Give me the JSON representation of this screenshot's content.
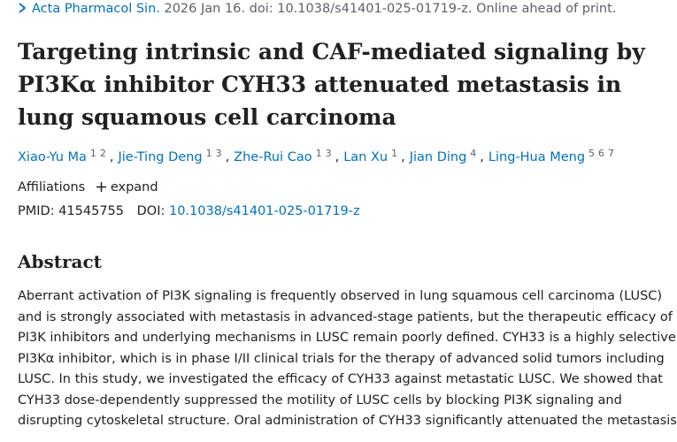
{
  "citation": {
    "journal": "Acta Pharmacol Sin.",
    "details": "2026 Jan 16. doi: 10.1038/s41401-025-01719-z. Online ahead of print."
  },
  "title": "Targeting intrinsic and CAF-mediated signaling by PI3Kα inhibitor CYH33 attenuated metastasis in lung squamous cell carcinoma",
  "author_separator": ",",
  "authors": [
    {
      "name": "Xiao-Yu Ma",
      "affiliations": [
        "1",
        "2"
      ]
    },
    {
      "name": "Jie-Ting Deng",
      "affiliations": [
        "1",
        "3"
      ]
    },
    {
      "name": "Zhe-Rui Cao",
      "affiliations": [
        "1",
        "3"
      ]
    },
    {
      "name": "Lan Xu",
      "affiliations": [
        "1"
      ]
    },
    {
      "name": "Jian Ding",
      "affiliations": [
        "4"
      ]
    },
    {
      "name": "Ling-Hua Meng",
      "affiliations": [
        "5",
        "6",
        "7"
      ]
    }
  ],
  "affiliations": {
    "label": "Affiliations",
    "expand": "expand"
  },
  "identifiers": {
    "pmid_label": "PMID:",
    "pmid": "41545755",
    "doi_label": "DOI:",
    "doi": "10.1038/s41401-025-01719-z"
  },
  "abstract": {
    "heading": "Abstract",
    "lines": [
      "Aberrant activation of PI3K signaling is frequently observed in lung squamous cell carcinoma (LUSC)",
      "and is strongly associated with metastasis in advanced-stage patients, but the therapeutic efficacy of",
      "PI3K inhibitors and underlying mechanisms in LUSC remain poorly defined. CYH33 is a highly selective",
      "PI3Kα inhibitor, which is in phase I/II clinical trials for the therapy of advanced solid tumors including",
      "LUSC. In this study, we investigated the efficacy of CYH33 against metastatic LUSC. We showed that",
      "CYH33 dose-dependently suppressed the motility of LUSC cells by blocking PI3K signaling and",
      "disrupting cytoskeletal structure. Oral administration of CYH33 significantly attenuated the metastasis"
    ]
  }
}
